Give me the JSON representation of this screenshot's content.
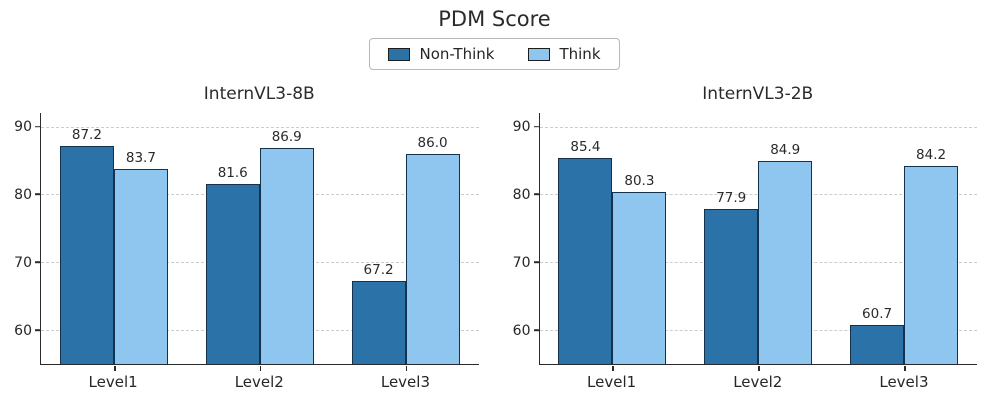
{
  "title": "PDM Score",
  "legend": [
    {
      "label": "Non-Think",
      "color": "#2b72a8"
    },
    {
      "label": "Think",
      "color": "#8ec6f0"
    }
  ],
  "chart_data": [
    {
      "type": "bar",
      "title": "InternVL3-8B",
      "categories": [
        "Level1",
        "Level2",
        "Level3"
      ],
      "series": [
        {
          "name": "Non-Think",
          "color": "#2b72a8",
          "values": [
            87.2,
            81.6,
            67.2
          ]
        },
        {
          "name": "Think",
          "color": "#8ec6f0",
          "values": [
            83.7,
            86.9,
            86.0
          ]
        }
      ],
      "ylim": [
        55,
        92
      ],
      "yticks": [
        60,
        70,
        80,
        90
      ],
      "grid": true,
      "legend_position": "top-center"
    },
    {
      "type": "bar",
      "title": "InternVL3-2B",
      "categories": [
        "Level1",
        "Level2",
        "Level3"
      ],
      "series": [
        {
          "name": "Non-Think",
          "color": "#2b72a8",
          "values": [
            85.4,
            77.9,
            60.7
          ]
        },
        {
          "name": "Think",
          "color": "#8ec6f0",
          "values": [
            80.3,
            84.9,
            84.2
          ]
        }
      ],
      "ylim": [
        55,
        92
      ],
      "yticks": [
        60,
        70,
        80,
        90
      ],
      "grid": true,
      "legend_position": "top-center"
    }
  ]
}
